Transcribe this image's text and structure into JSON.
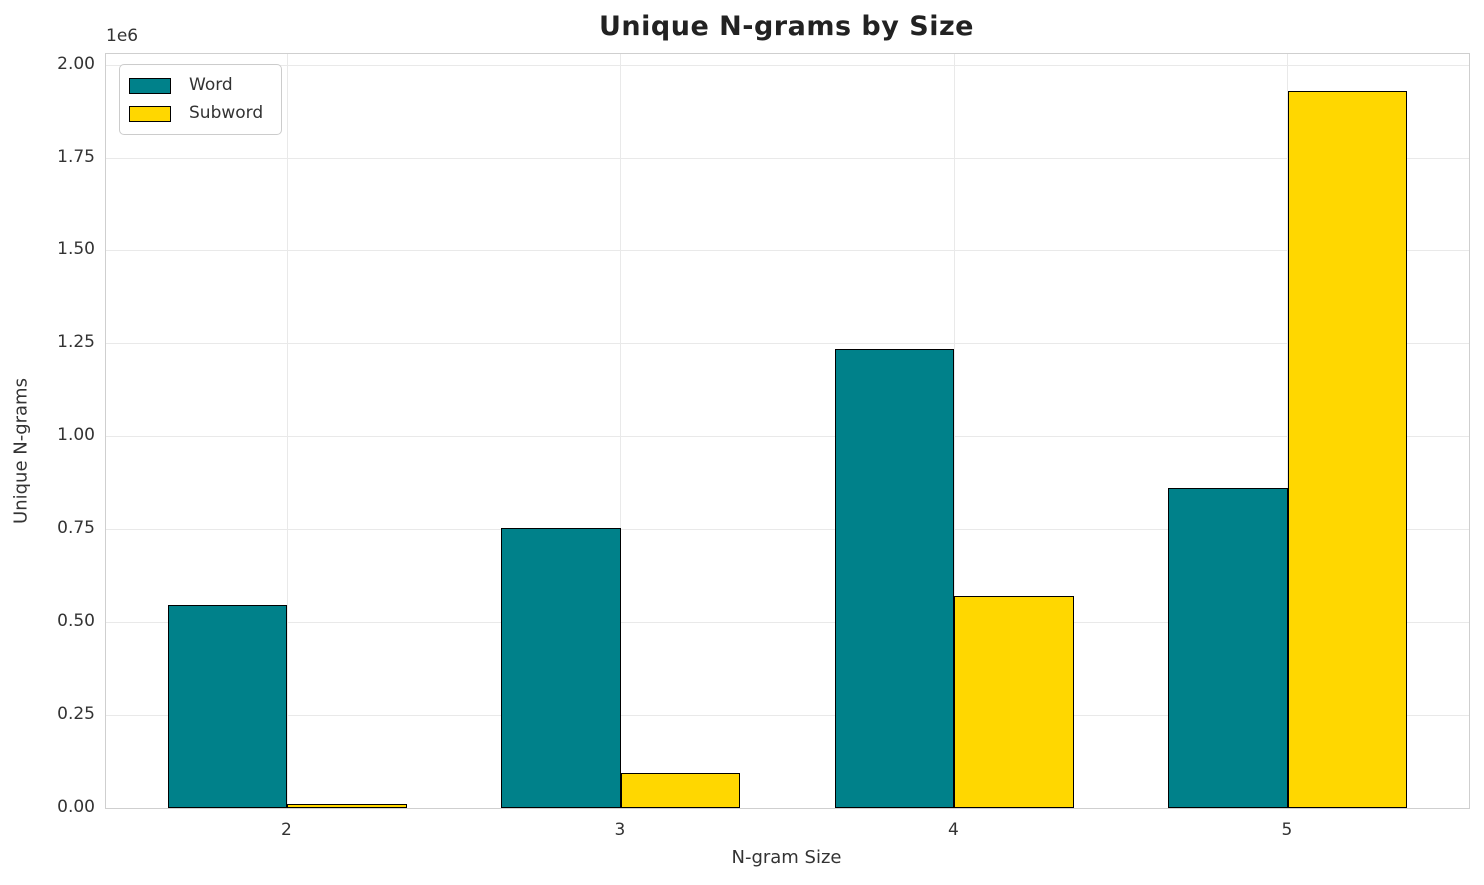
{
  "chart_data": {
    "type": "bar",
    "title": "Unique N-grams by Size",
    "xlabel": "N-gram Size",
    "ylabel": "Unique N-grams",
    "y_offset_label": "1e6",
    "categories": [
      "2",
      "3",
      "4",
      "5"
    ],
    "series": [
      {
        "name": "Word",
        "color": "#00818A",
        "values": [
          545000,
          754000,
          1235000,
          860000
        ]
      },
      {
        "name": "Subword",
        "color": "#FFD700",
        "values": [
          12000,
          93000,
          570000,
          1930000
        ]
      }
    ],
    "bar_edge_color": "#000000",
    "ylim": [
      0,
      2028600
    ],
    "ytick_values": [
      0,
      250000,
      500000,
      750000,
      1000000,
      1250000,
      1500000,
      1750000,
      2000000
    ],
    "ytick_labels": [
      "0.00",
      "0.25",
      "0.50",
      "0.75",
      "1.00",
      "1.25",
      "1.50",
      "1.75",
      "2.00"
    ],
    "grid": true,
    "legend_position": "upper left"
  }
}
